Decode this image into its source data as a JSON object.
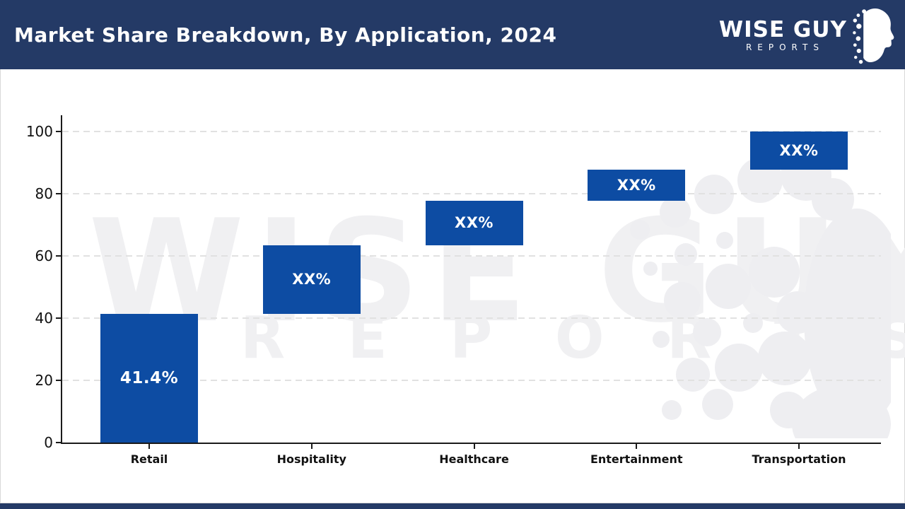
{
  "header": {
    "title": "Market Share Breakdown, By Application, 2024",
    "logo": {
      "line1": "WISE GUY",
      "line2": "REPORTS"
    }
  },
  "watermark": {
    "line1": "WISE GUY",
    "line2": "R E P O R T S"
  },
  "colors": {
    "header_bg": "#243A66",
    "footer_bg": "#243A66",
    "bar": "#0D4CA3",
    "bar_label": "#FFFFFF",
    "axis": "#1A1A1A",
    "grid": "#E1E1E1",
    "tick_text": "#111111",
    "watermark": "#F0F0F2"
  },
  "chart_data": {
    "type": "bar",
    "subtype": "waterfall",
    "title": "Market Share Breakdown, By Application, 2024",
    "categories": [
      "Retail",
      "Hospitality",
      "Healthcare",
      "Entertainment",
      "Transportation"
    ],
    "segments": [
      {
        "category": "Retail",
        "start": 0,
        "end": 41.4,
        "label": "41.4%"
      },
      {
        "category": "Hospitality",
        "start": 41.4,
        "end": 63.5,
        "label": "XX%"
      },
      {
        "category": "Healthcare",
        "start": 63.5,
        "end": 77.7,
        "label": "XX%"
      },
      {
        "category": "Entertainment",
        "start": 77.7,
        "end": 87.7,
        "label": "XX%"
      },
      {
        "category": "Transportation",
        "start": 87.7,
        "end": 100,
        "label": "XX%"
      }
    ],
    "xlabel": "",
    "ylabel": "",
    "y_ticks": [
      0,
      20,
      40,
      60,
      80,
      100
    ],
    "ylim": [
      0,
      105
    ],
    "grid": "dashed-horizontal",
    "legend": false
  }
}
